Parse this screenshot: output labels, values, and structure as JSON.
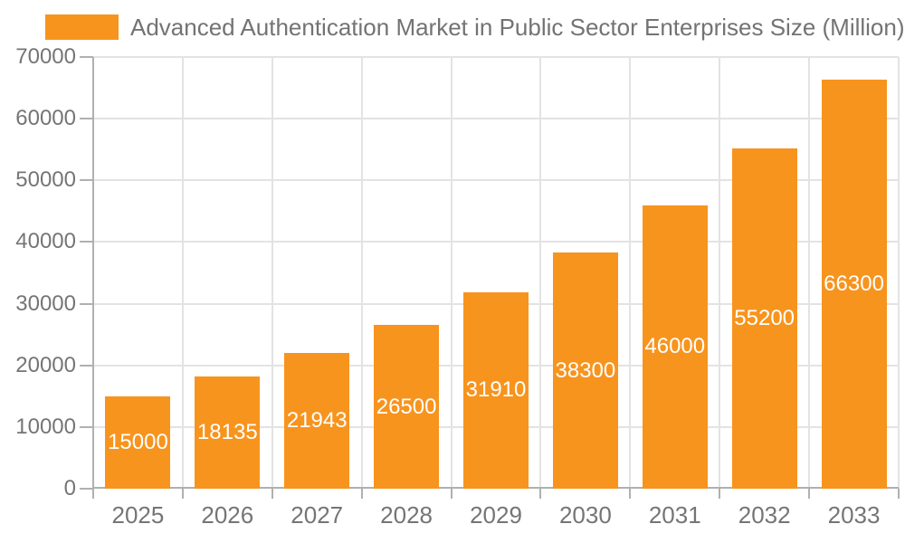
{
  "legend": {
    "label": "Advanced Authentication Market in Public Sector Enterprises Size (Million)"
  },
  "chart_data": {
    "type": "bar",
    "title": "Advanced Authentication Market in Public Sector Enterprises Size (Million)",
    "categories": [
      "2025",
      "2026",
      "2027",
      "2028",
      "2029",
      "2030",
      "2031",
      "2032",
      "2033"
    ],
    "values": [
      15000,
      18135,
      21943,
      26500,
      31910,
      38300,
      46000,
      55200,
      66300
    ],
    "xlabel": "",
    "ylabel": "",
    "ylim": [
      0,
      70000
    ],
    "yticks": [
      0,
      10000,
      20000,
      30000,
      40000,
      50000,
      60000,
      70000
    ],
    "grid": true,
    "legend_position": "top-left",
    "value_labels": "inside-center-white"
  },
  "colors": {
    "bar": "#F7941E",
    "axis": "#b0b0b0",
    "grid": "#e3e3e3",
    "tick_label": "#757575",
    "legend_text": "#737373",
    "value_label": "#ffffff",
    "background": "#ffffff"
  }
}
